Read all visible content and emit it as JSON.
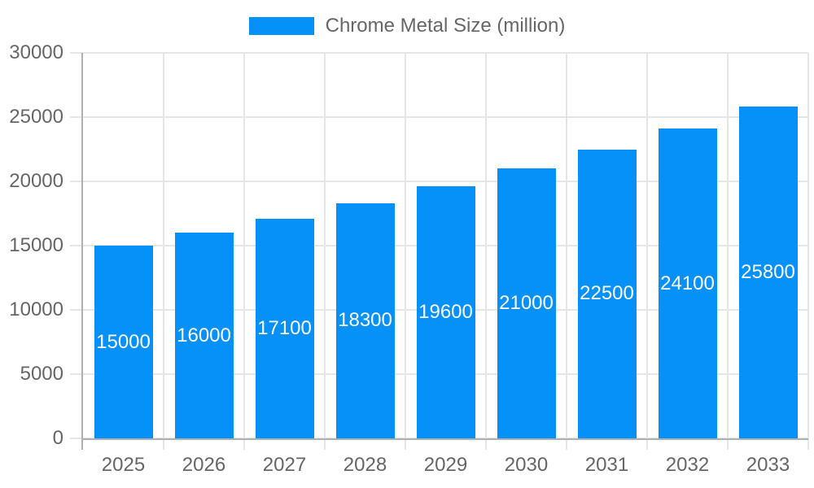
{
  "chart_data": {
    "type": "bar",
    "legend_label": "Chrome Metal Size (million)",
    "categories": [
      "2025",
      "2026",
      "2027",
      "2028",
      "2029",
      "2030",
      "2031",
      "2032",
      "2033"
    ],
    "series": [
      {
        "name": "Chrome Metal Size (million)",
        "values": [
          15000,
          16000,
          17100,
          18300,
          19600,
          21000,
          22500,
          24100,
          25800
        ]
      }
    ],
    "value_labels": [
      "15000",
      "16000",
      "17100",
      "18300",
      "19600",
      "21000",
      "22500",
      "24100",
      "25800"
    ],
    "ylim": [
      0,
      30000
    ],
    "ytick_step": 5000,
    "ytick_labels": [
      "0",
      "5000",
      "10000",
      "15000",
      "20000",
      "25000",
      "30000"
    ],
    "grid": "both",
    "legend_position": "top",
    "title": "",
    "xlabel": "",
    "ylabel": "",
    "colors": {
      "bar": "#0591f8",
      "value_label_text": "#ffffff",
      "axis_text": "#666666",
      "grid_line": "#e6e6e6",
      "axis_line": "#b0b0b0",
      "background": "#ffffff"
    }
  }
}
